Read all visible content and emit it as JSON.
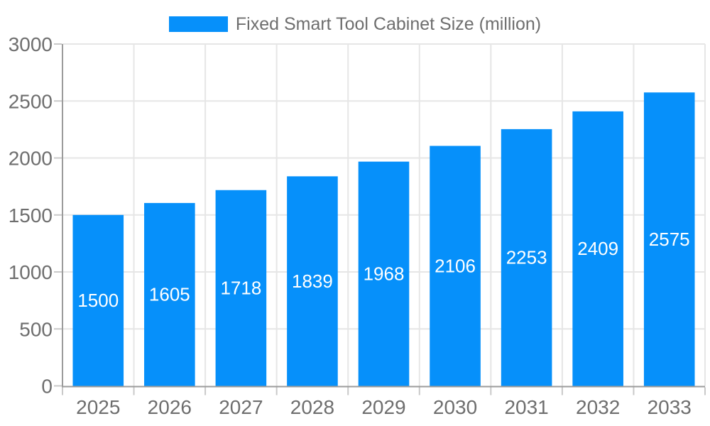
{
  "chart_data": {
    "type": "bar",
    "title": "Fixed Smart Tool Cabinet Size (million)",
    "series_name": "Fixed Smart Tool Cabinet Size (million)",
    "categories": [
      "2025",
      "2026",
      "2027",
      "2028",
      "2029",
      "2030",
      "2031",
      "2032",
      "2033"
    ],
    "values": [
      1500,
      1605,
      1718,
      1839,
      1968,
      2106,
      2253,
      2409,
      2575
    ],
    "xlabel": "",
    "ylabel": "",
    "ylim": [
      0,
      3000
    ],
    "yticks": [
      0,
      500,
      1000,
      1500,
      2000,
      2500,
      3000
    ],
    "grid": true,
    "legend_position": "top-center",
    "bar_label_position": "inside-center",
    "colors": {
      "bar": "#0690fa",
      "bar_label": "#ffffff",
      "axis": "#9b9b9b",
      "grid": "#e6e6e6",
      "tick": "#c9c9c9",
      "text": "#6e6e6e",
      "background": "#ffffff"
    }
  }
}
